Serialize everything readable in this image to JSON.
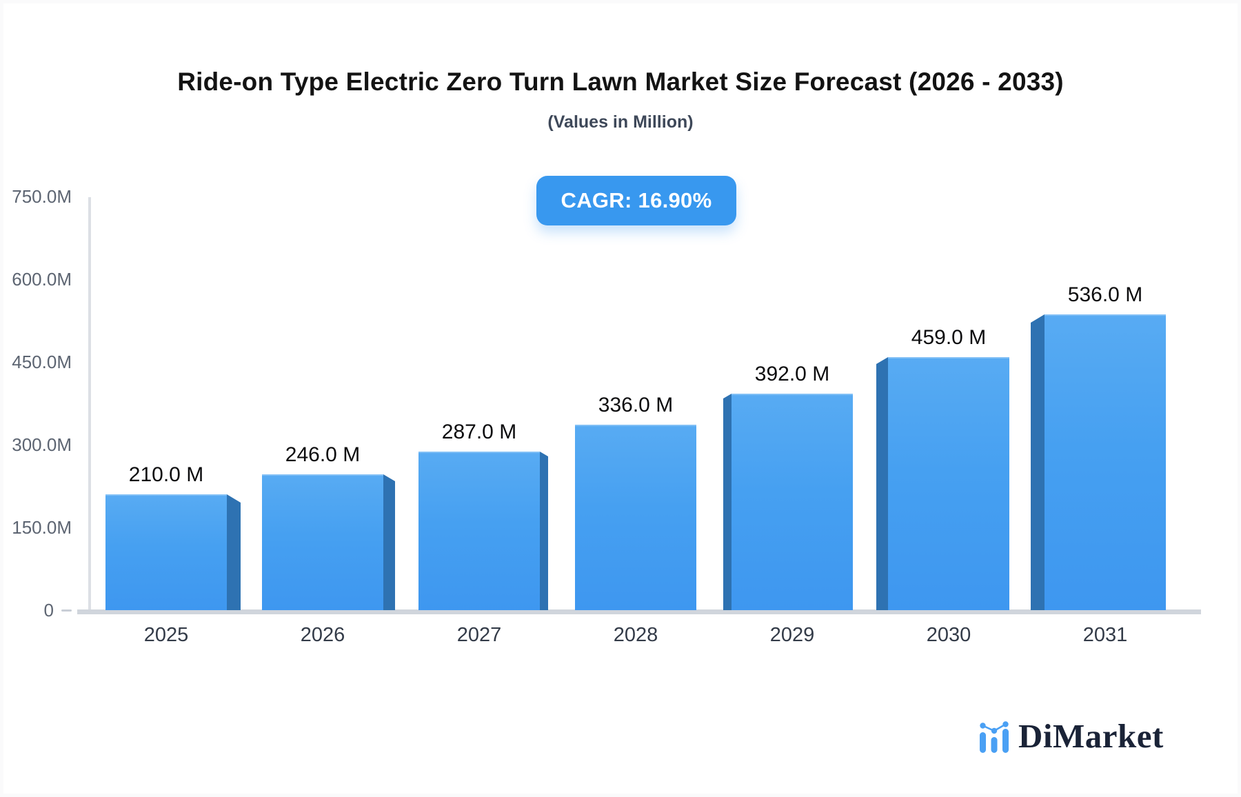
{
  "chart_data": {
    "type": "bar",
    "title": "Ride-on Type Electric Zero Turn Lawn Market Size Forecast (2026 - 2033)",
    "subtitle": "(Values in Million)",
    "categories": [
      "2025",
      "2026",
      "2027",
      "2028",
      "2029",
      "2030",
      "2031"
    ],
    "values": [
      210.0,
      246.0,
      287.0,
      336.0,
      392.0,
      459.0,
      536.0
    ],
    "value_labels": [
      "210.0 M",
      "246.0 M",
      "287.0 M",
      "336.0 M",
      "392.0 M",
      "459.0 M",
      "536.0 M"
    ],
    "y_axis": {
      "labels": [
        "750.0M",
        "600.0M",
        "450.0M",
        "300.0M",
        "150.0M",
        "0"
      ],
      "values": [
        750,
        600,
        450,
        300,
        150,
        0
      ]
    },
    "ylim": [
      0,
      750
    ],
    "xlabel": "",
    "ylabel": "",
    "grid": false,
    "legend": false,
    "annotation": "CAGR: 16.90%",
    "cagr_percent": 16.9
  },
  "badge": {
    "label": "CAGR: 16.90%"
  },
  "footer": {
    "brand": "DiMarket"
  },
  "colors": {
    "bar_top": "#58abf3",
    "bar_mid": "#46a0f1",
    "bar_bottom": "#3e97f0",
    "bar_side": "#2e72b2",
    "badge_bg": "#3898ef",
    "badge_text": "#ffffff",
    "axis_line": "#dcdfe5",
    "baseline": "#d0d5dc",
    "logo_blue": "#4aa0f4",
    "logo_navy": "#1a2337"
  }
}
